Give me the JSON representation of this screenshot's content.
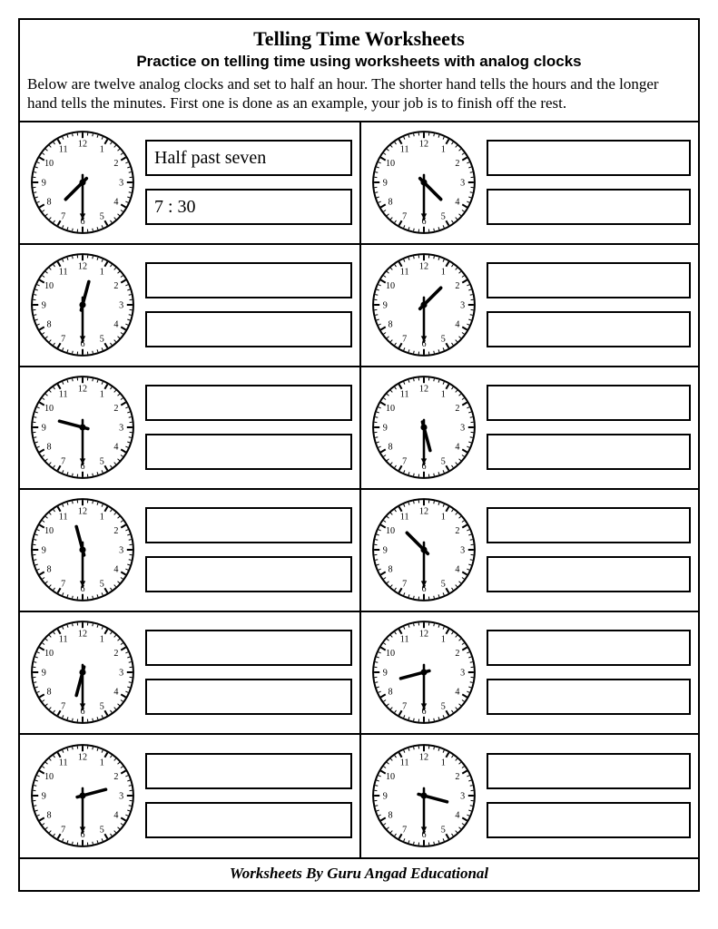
{
  "colors": {
    "ink": "#000000",
    "paper": "#ffffff"
  },
  "header": {
    "title": "Telling Time Worksheets",
    "subtitle": "Practice on telling time using worksheets with analog clocks",
    "instructions": "Below are twelve analog clocks and set to half an hour. The shorter hand tells the hours and the longer hand tells the minutes. First one is done as an example, your job is to finish off the rest."
  },
  "clock_style": {
    "radius": 55,
    "number_radius": 42,
    "tick_outer": 55,
    "tick_inner_minor": 51,
    "tick_inner_major": 48,
    "hour_hand_len": 26,
    "minute_hand_len": 40,
    "face_stroke": 2,
    "hour_stroke": 3.5,
    "minute_stroke": 2.5,
    "numeral_fontsize": 10
  },
  "clocks": [
    {
      "hour": 7,
      "minute": 30,
      "answer_words": "Half past seven",
      "answer_digits": "7 : 30"
    },
    {
      "hour": 4,
      "minute": 30,
      "answer_words": "",
      "answer_digits": ""
    },
    {
      "hour": 12,
      "minute": 30,
      "answer_words": "",
      "answer_digits": ""
    },
    {
      "hour": 1,
      "minute": 30,
      "answer_words": "",
      "answer_digits": ""
    },
    {
      "hour": 9,
      "minute": 30,
      "answer_words": "",
      "answer_digits": ""
    },
    {
      "hour": 5,
      "minute": 30,
      "answer_words": "",
      "answer_digits": ""
    },
    {
      "hour": 11,
      "minute": 30,
      "answer_words": "",
      "answer_digits": ""
    },
    {
      "hour": 10,
      "minute": 30,
      "answer_words": "",
      "answer_digits": ""
    },
    {
      "hour": 6,
      "minute": 30,
      "answer_words": "",
      "answer_digits": ""
    },
    {
      "hour": 8,
      "minute": 30,
      "answer_words": "",
      "answer_digits": ""
    },
    {
      "hour": 2,
      "minute": 30,
      "answer_words": "",
      "answer_digits": ""
    },
    {
      "hour": 3,
      "minute": 30,
      "answer_words": "",
      "answer_digits": ""
    }
  ],
  "footer": "Worksheets By Guru Angad Educational"
}
